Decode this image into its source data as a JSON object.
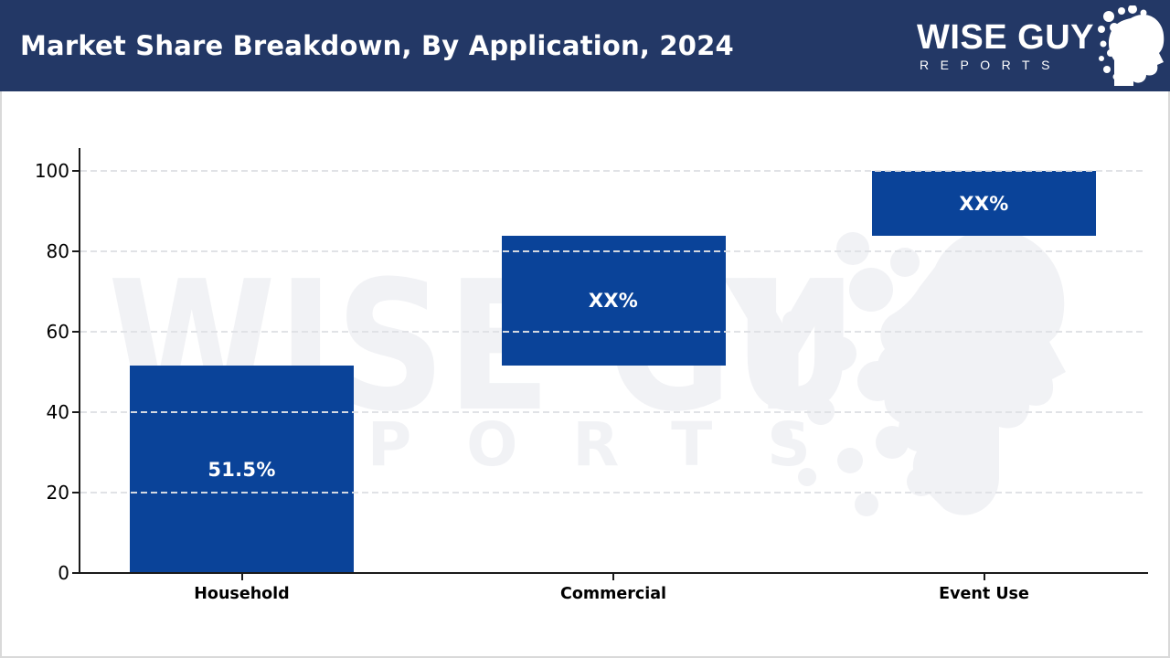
{
  "header": {
    "title": "Market Share Breakdown, By Application, 2024",
    "logo": {
      "line1": "WISE GUY",
      "line2": "REPORTS"
    }
  },
  "watermark": {
    "text1": "WISE GU",
    "text1b": "Y",
    "text2": "REPORTS"
  },
  "colors": {
    "header_bg": "#233866",
    "bar_blue": "#0a4399",
    "gridline": "#e3e3e3",
    "frame_border": "#d9d9d9",
    "bar_label": "#ffffff"
  },
  "chart_data": {
    "type": "bar",
    "subtype": "waterfall",
    "title": "Market Share Breakdown, By Application, 2024",
    "categories": [
      "Household",
      "Commercial",
      "Event Use"
    ],
    "segments": [
      {
        "category": "Household",
        "start": 0,
        "end": 51.5,
        "label": "51.5%"
      },
      {
        "category": "Commercial",
        "start": 51.5,
        "end": 83.8,
        "label": "XX%"
      },
      {
        "category": "Event Use",
        "start": 83.8,
        "end": 100,
        "label": "XX%"
      }
    ],
    "ylim": [
      0,
      105
    ],
    "yticks": [
      0,
      20,
      40,
      60,
      80,
      100
    ],
    "xlabel": "",
    "ylabel": "",
    "grid": "dashed-horizontal",
    "legend": "none",
    "bar_color": "#0a4399",
    "value_label_color": "#ffffff"
  }
}
